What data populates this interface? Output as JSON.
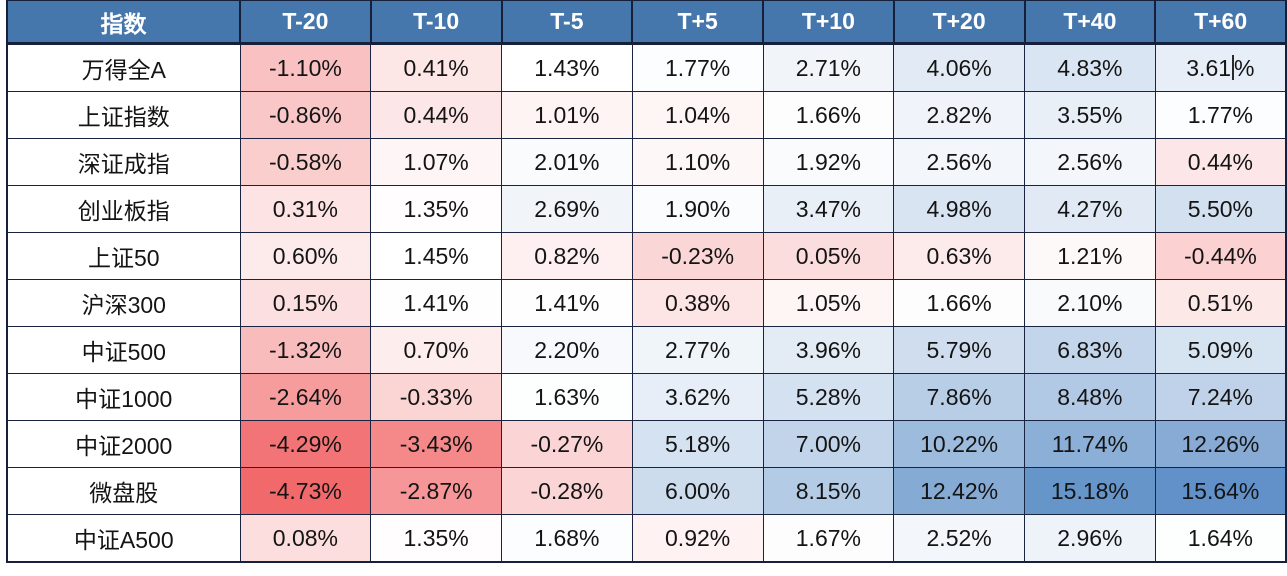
{
  "colors": {
    "header_bg": "#4576AC",
    "header_text": "#FFFFFF",
    "grid_border": "#1A2440",
    "negative_extreme": "#F2696B",
    "positive_extreme": "#6191C8",
    "neutral": "#FFFFFF"
  },
  "table": {
    "header": [
      "指数",
      "T-20",
      "T-10",
      "T-5",
      "T+5",
      "T+10",
      "T+20",
      "T+40",
      "T+60"
    ],
    "rows": [
      {
        "label": "万得全A",
        "values": [
          -1.1,
          0.41,
          1.43,
          1.77,
          2.71,
          4.06,
          4.83,
          3.61
        ]
      },
      {
        "label": "上证指数",
        "values": [
          -0.86,
          0.44,
          1.01,
          1.04,
          1.66,
          2.82,
          3.55,
          1.77
        ]
      },
      {
        "label": "深证成指",
        "values": [
          -0.58,
          1.07,
          2.01,
          1.1,
          1.92,
          2.56,
          2.56,
          0.44
        ]
      },
      {
        "label": "创业板指",
        "values": [
          0.31,
          1.35,
          2.69,
          1.9,
          3.47,
          4.98,
          4.27,
          5.5
        ]
      },
      {
        "label": "上证50",
        "values": [
          0.6,
          1.45,
          0.82,
          -0.23,
          0.05,
          0.63,
          1.21,
          -0.44
        ]
      },
      {
        "label": "沪深300",
        "values": [
          0.15,
          1.41,
          1.41,
          0.38,
          1.05,
          1.66,
          2.1,
          0.51
        ]
      },
      {
        "label": "中证500",
        "values": [
          -1.32,
          0.7,
          2.2,
          2.77,
          3.96,
          5.79,
          6.83,
          5.09
        ]
      },
      {
        "label": "中证1000",
        "values": [
          -2.64,
          -0.33,
          1.63,
          3.62,
          5.28,
          7.86,
          8.48,
          7.24
        ]
      },
      {
        "label": "中证2000",
        "values": [
          -4.29,
          -3.43,
          -0.27,
          5.18,
          7.0,
          10.22,
          11.74,
          12.26
        ]
      },
      {
        "label": "微盘股",
        "values": [
          -4.73,
          -2.87,
          -0.28,
          6.0,
          8.15,
          12.42,
          15.18,
          15.64
        ]
      },
      {
        "label": "中证A500",
        "values": [
          0.08,
          1.35,
          1.68,
          0.92,
          1.67,
          2.52,
          2.96,
          1.64
        ]
      }
    ],
    "text_cursor": {
      "row_index": 0,
      "col_index": 7
    },
    "value_format": "percent_2dp"
  },
  "chart_data": {
    "type": "heatmap",
    "title": "",
    "columns": [
      "T-20",
      "T-10",
      "T-5",
      "T+5",
      "T+10",
      "T+20",
      "T+40",
      "T+60"
    ],
    "row_labels": [
      "万得全A",
      "上证指数",
      "深证成指",
      "创业板指",
      "上证50",
      "沪深300",
      "中证500",
      "中证1000",
      "中证2000",
      "微盘股",
      "中证A500"
    ],
    "series": [
      {
        "name": "万得全A",
        "values": [
          -1.1,
          0.41,
          1.43,
          1.77,
          2.71,
          4.06,
          4.83,
          3.61
        ]
      },
      {
        "name": "上证指数",
        "values": [
          -0.86,
          0.44,
          1.01,
          1.04,
          1.66,
          2.82,
          3.55,
          1.77
        ]
      },
      {
        "name": "深证成指",
        "values": [
          -0.58,
          1.07,
          2.01,
          1.1,
          1.92,
          2.56,
          2.56,
          0.44
        ]
      },
      {
        "name": "创业板指",
        "values": [
          0.31,
          1.35,
          2.69,
          1.9,
          3.47,
          4.98,
          4.27,
          5.5
        ]
      },
      {
        "name": "上证50",
        "values": [
          0.6,
          1.45,
          0.82,
          -0.23,
          0.05,
          0.63,
          1.21,
          -0.44
        ]
      },
      {
        "name": "沪深300",
        "values": [
          0.15,
          1.41,
          1.41,
          0.38,
          1.05,
          1.66,
          2.1,
          0.51
        ]
      },
      {
        "name": "中证500",
        "values": [
          -1.32,
          0.7,
          2.2,
          2.77,
          3.96,
          5.79,
          6.83,
          5.09
        ]
      },
      {
        "name": "中证1000",
        "values": [
          -2.64,
          -0.33,
          1.63,
          3.62,
          5.28,
          7.86,
          8.48,
          7.24
        ]
      },
      {
        "name": "中证2000",
        "values": [
          -4.29,
          -3.43,
          -0.27,
          5.18,
          7.0,
          10.22,
          11.74,
          12.26
        ]
      },
      {
        "name": "微盘股",
        "values": [
          -4.73,
          -2.87,
          -0.28,
          6.0,
          8.15,
          12.42,
          15.18,
          15.64
        ]
      },
      {
        "name": "中证A500",
        "values": [
          0.08,
          1.35,
          1.68,
          0.92,
          1.67,
          2.52,
          2.96,
          1.64
        ]
      }
    ],
    "value_unit": "percent",
    "value_min": -4.73,
    "value_max": 15.64,
    "color_scale": {
      "min_color": "#F2696B",
      "mid_color": "#FFFFFF",
      "max_color": "#6191C8",
      "mid_value": 1.45
    },
    "layout": {
      "first_column_header": "指数",
      "grid": true,
      "legend": false
    }
  }
}
